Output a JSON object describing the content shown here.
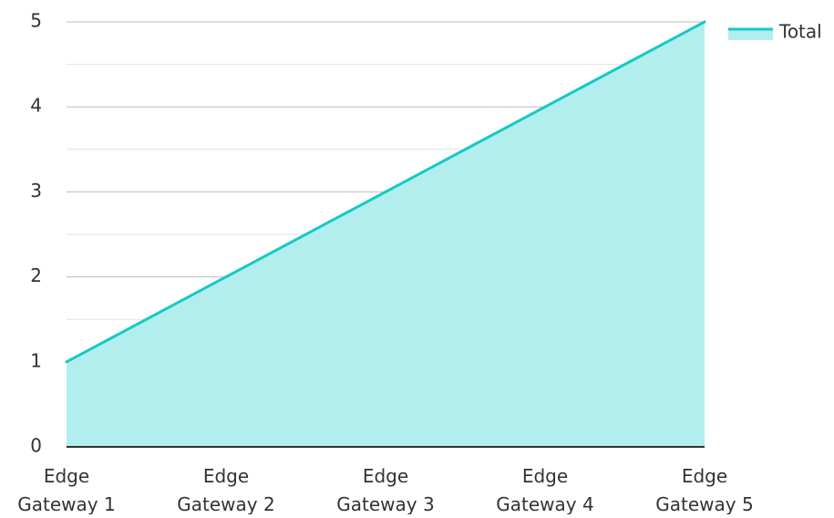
{
  "chart_data": {
    "type": "area",
    "categories": [
      "Edge\nGateway 1",
      "Edge\nGateway 2",
      "Edge\nGateway 3",
      "Edge\nGateway 4",
      "Edge\nGateway 5"
    ],
    "series": [
      {
        "name": "Total",
        "values": [
          1,
          2,
          3,
          4,
          5
        ]
      }
    ],
    "ylim": [
      0,
      5
    ],
    "yticks": [
      0,
      1,
      2,
      3,
      4,
      5
    ],
    "grid": true,
    "legend": "top-right",
    "colors": {
      "line": "#17c8c8",
      "fill": "#b2eeee",
      "major_grid": "#bdbdbd",
      "minor_grid": "#e3e3e3",
      "axis": "#333333"
    }
  }
}
